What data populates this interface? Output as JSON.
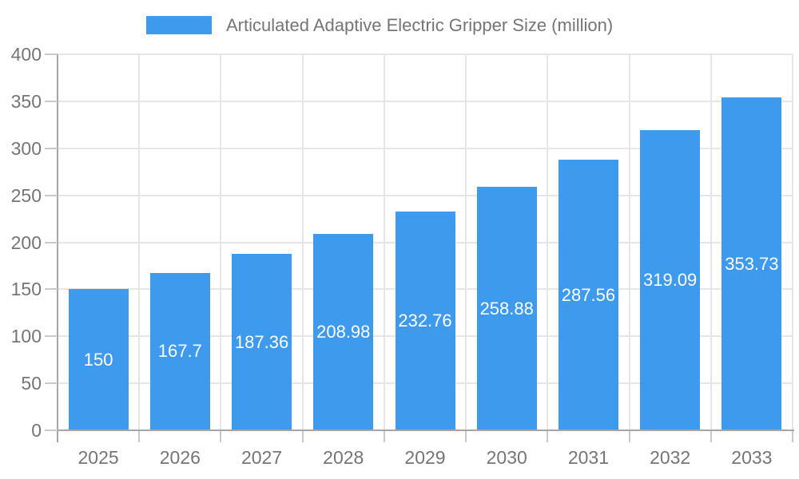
{
  "chart_data": {
    "type": "bar",
    "title": "Articulated Adaptive Electric Gripper Size (million)",
    "series_name": "Articulated Adaptive Electric Gripper Size (million)",
    "categories": [
      "2025",
      "2026",
      "2027",
      "2028",
      "2029",
      "2030",
      "2031",
      "2032",
      "2033"
    ],
    "values": [
      150,
      167.7,
      187.36,
      208.98,
      232.76,
      258.88,
      287.56,
      319.09,
      353.73
    ],
    "value_labels": [
      "150",
      "167.7",
      "187.36",
      "208.98",
      "232.76",
      "258.88",
      "287.56",
      "319.09",
      "353.73"
    ],
    "xlabel": "",
    "ylabel": "",
    "ylim": [
      0,
      400
    ],
    "yticks": [
      0,
      50,
      100,
      150,
      200,
      250,
      300,
      350,
      400
    ],
    "grid": true,
    "legend_position": "top",
    "bar_color": "#3D9AEC",
    "bar_label_color": "#ffffff"
  },
  "colors": {
    "bar": "#3D9AEC",
    "grid": "#e6e6e6",
    "axis": "#a6a6a6",
    "tick": "#c9c9c9",
    "axis_text": "#757575",
    "legend_text": "#757575",
    "bar_label": "#ffffff",
    "background": "#ffffff"
  }
}
